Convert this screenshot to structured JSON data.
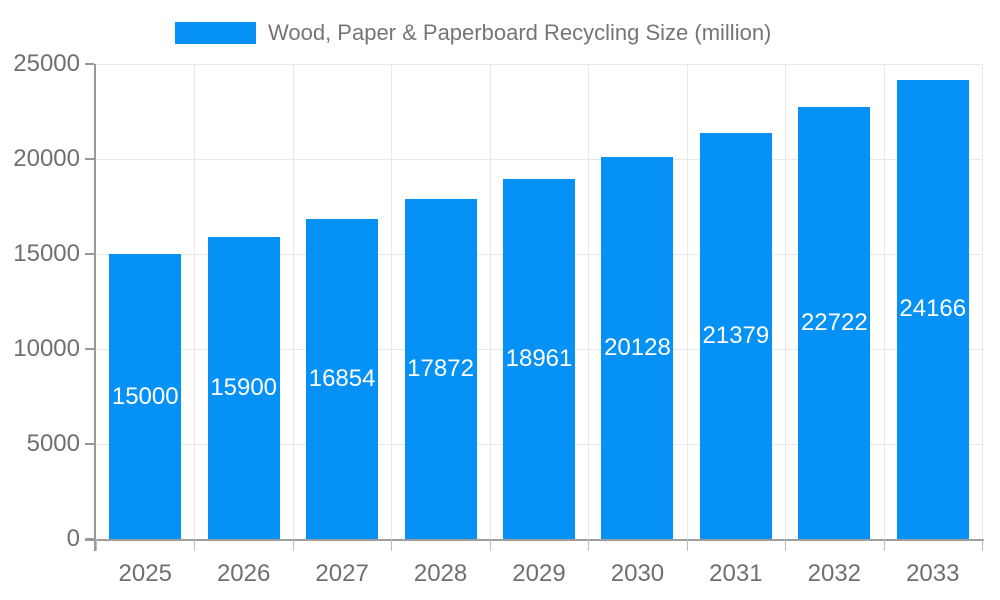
{
  "legend": {
    "label": "Wood, Paper & Paperboard Recycling Size (million)"
  },
  "chart_data": {
    "type": "bar",
    "title": "Wood, Paper & Paperboard Recycling Size (million)",
    "categories": [
      "2025",
      "2026",
      "2027",
      "2028",
      "2029",
      "2030",
      "2031",
      "2032",
      "2033"
    ],
    "values": [
      15000,
      15900,
      16854,
      17872,
      18961,
      20128,
      21379,
      22722,
      24166
    ],
    "xlabel": "",
    "ylabel": "",
    "ylim": [
      0,
      25000
    ],
    "yticks": [
      0,
      5000,
      10000,
      15000,
      20000,
      25000
    ],
    "grid": "horizontal and vertical, light gray",
    "legend_position": "top-left",
    "bar_labels": "values shown in white, centered inside bars"
  },
  "colors": {
    "bar": "#0591F5",
    "grid": "#E8E8E8",
    "axis_line": "#999999",
    "axis_label": "#6F6F6F",
    "title": "#757575",
    "bar_label": "#FFFFFF",
    "background": "#FFFFFF"
  }
}
